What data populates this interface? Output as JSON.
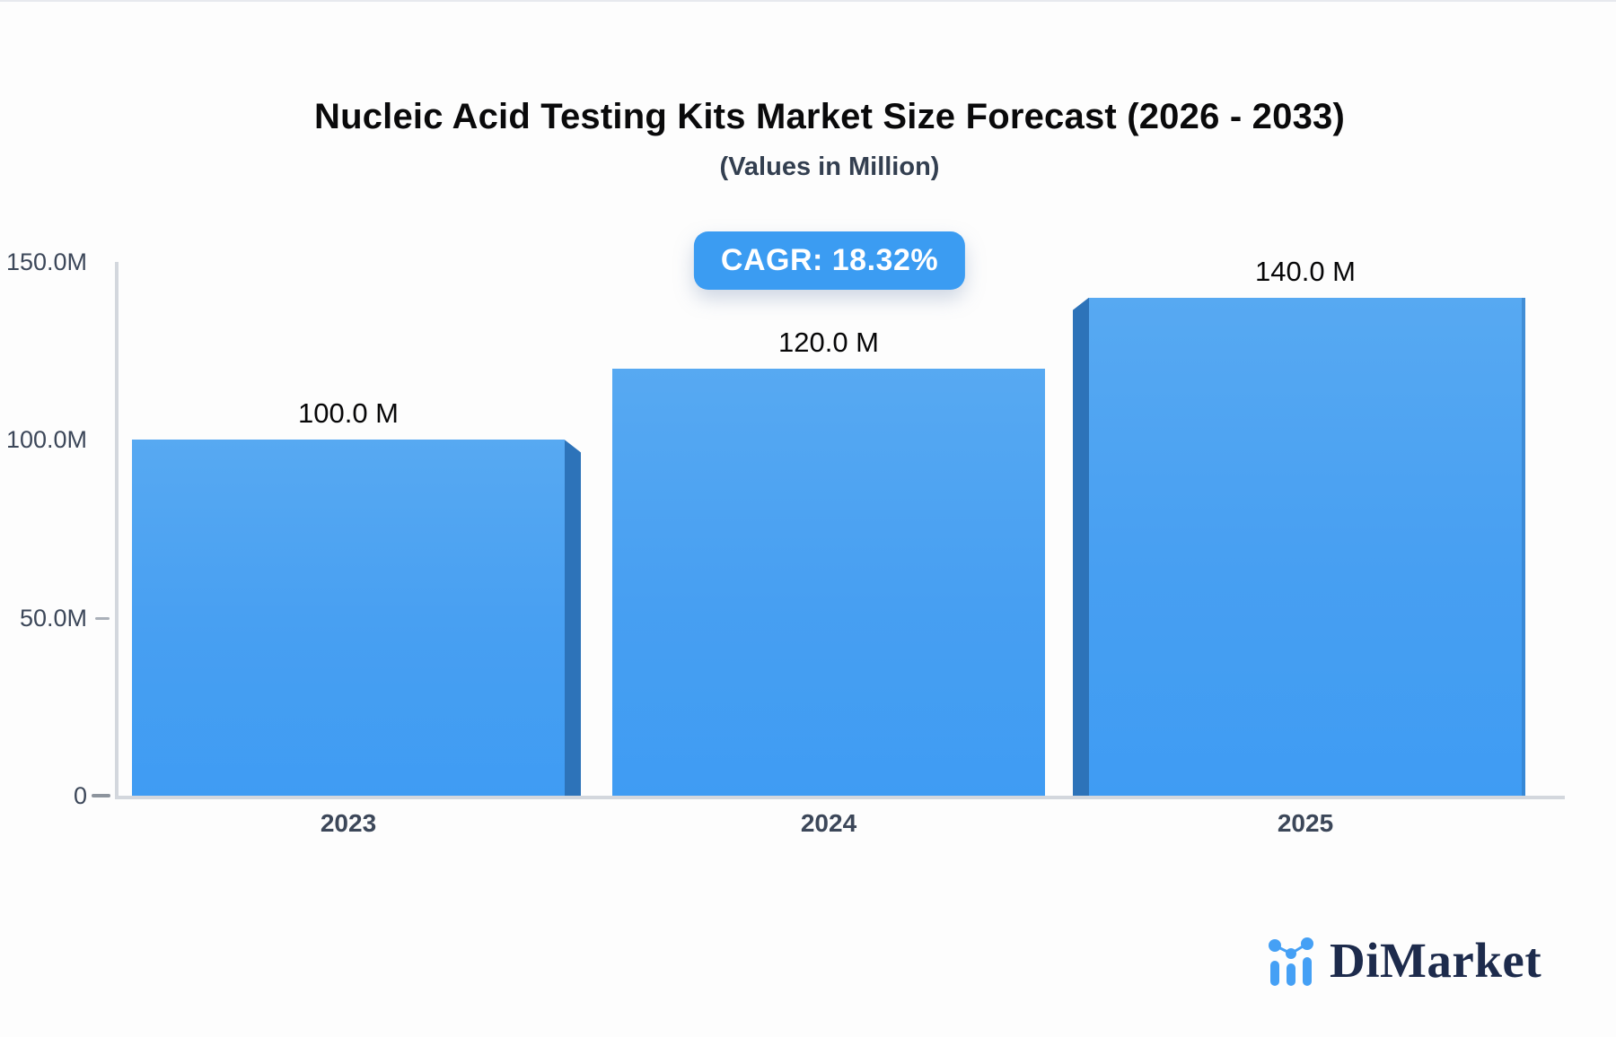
{
  "header": {
    "title": "Nucleic Acid Testing Kits Market Size Forecast (2026 - 2033)",
    "subtitle": "(Values in Million)"
  },
  "badge": {
    "label": "CAGR: 18.32%",
    "bg": "#3b9cf2"
  },
  "chart_data": {
    "type": "bar",
    "title": "Nucleic Acid Testing Kits Market Size Forecast (2026 - 2033)",
    "subtitle": "(Values in Million)",
    "unit": "Million",
    "categories": [
      "2023",
      "2024",
      "2025"
    ],
    "values": [
      100,
      120,
      140
    ],
    "value_labels": [
      "100.0 M",
      "120.0 M",
      "140.0 M"
    ],
    "y_ticks": [
      "150.0M",
      "100.0M",
      "50.0M",
      "0"
    ],
    "y_tick_values": [
      150,
      100,
      50,
      0
    ],
    "ylim": [
      0,
      150
    ],
    "grid": false,
    "legend": "none",
    "cagr_annotation": "CAGR: 18.32%",
    "bar_color_top": "#57a9f2",
    "bar_color_bottom": "#3f9cf3",
    "bar_side_color": "#2d73b9",
    "axis_color": "#d3d7dd",
    "label_color": "#3c4759"
  },
  "watermark": {
    "brand": "DiMarket",
    "icon": "dimarket-bars-icon",
    "icon_color": "#45a0f5",
    "text_color": "#1d2b4c"
  }
}
